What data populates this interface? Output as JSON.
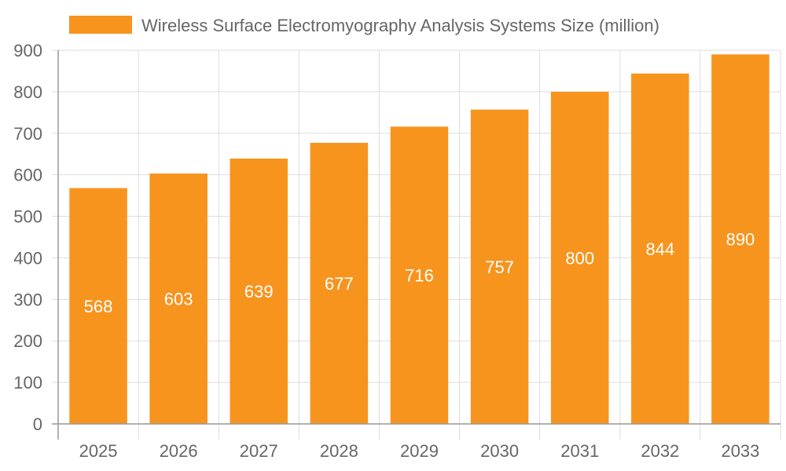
{
  "chart_data": {
    "type": "bar",
    "categories": [
      "2025",
      "2026",
      "2027",
      "2028",
      "2029",
      "2030",
      "2031",
      "2032",
      "2033"
    ],
    "series": [
      {
        "name": "Wireless Surface Electromyography Analysis Systems Size (million)",
        "values": [
          568,
          603,
          639,
          677,
          716,
          757,
          800,
          844,
          890
        ]
      }
    ],
    "ylim": [
      0,
      900
    ],
    "yticks": [
      0,
      100,
      200,
      300,
      400,
      500,
      600,
      700,
      800,
      900
    ],
    "grid": true,
    "legend": "top",
    "data_labels": true,
    "colors": {
      "bar": "#F7941E",
      "grid": "#dddddd",
      "axis": "#999999",
      "label": "#ffffff"
    }
  }
}
